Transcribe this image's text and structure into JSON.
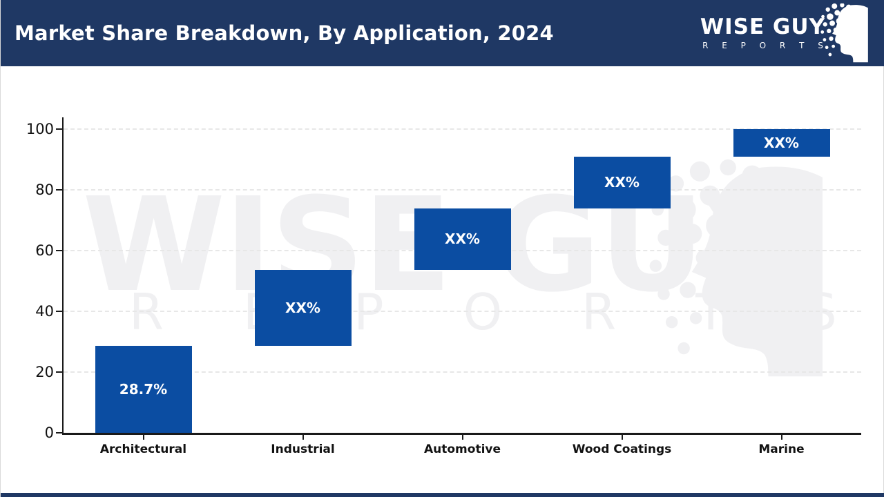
{
  "header": {
    "title": "Market Share Breakdown, By Application, 2024",
    "logo": {
      "name": "WISE GUY",
      "sub": "R E P O R T S"
    }
  },
  "watermark": {
    "name": "WISE GUY",
    "sub": "R E P O R T S"
  },
  "colors": {
    "header_bg": "#1f3864",
    "footer_bg": "#1f3864",
    "bar": "#0b4da2",
    "bar_label": "#ffffff",
    "grid": "#e7e7e7",
    "axis": "#1a1a1a",
    "tick_text": "#111111",
    "watermark": "#f0f0f2"
  },
  "chart_data": {
    "type": "bar",
    "subtype": "waterfall-floating-bars",
    "title": "Market Share Breakdown, By Application, 2024",
    "categories": [
      "Architectural",
      "Industrial",
      "Automotive",
      "Wood Coatings",
      "Marine"
    ],
    "segments": [
      {
        "category": "Architectural",
        "start": 0,
        "end": 28.7,
        "label": "28.7%"
      },
      {
        "category": "Industrial",
        "start": 28.7,
        "end": 53.7,
        "label": "XX%"
      },
      {
        "category": "Automotive",
        "start": 53.7,
        "end": 74.0,
        "label": "XX%"
      },
      {
        "category": "Wood Coatings",
        "start": 74.0,
        "end": 91.0,
        "label": "XX%"
      },
      {
        "category": "Marine",
        "start": 91.0,
        "end": 100.0,
        "label": "XX%"
      }
    ],
    "yticks": [
      0,
      20,
      40,
      60,
      80,
      100
    ],
    "ylim": [
      0,
      103.9
    ],
    "xlabel": "",
    "ylabel": "",
    "grid": "horizontal-dashed",
    "legend": "none"
  }
}
